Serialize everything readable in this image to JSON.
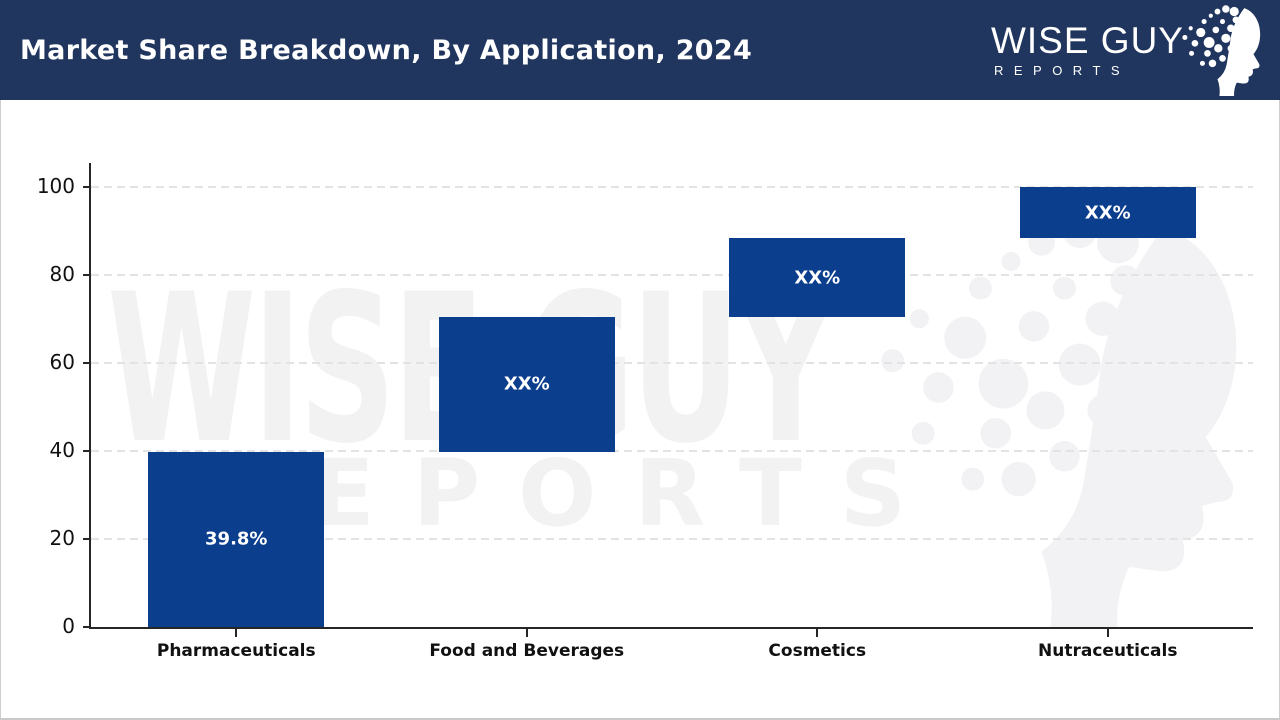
{
  "header": {
    "title": "Market Share Breakdown, By Application, 2024",
    "logo": {
      "line1": "WISE GUY",
      "line2": "REPORTS"
    }
  },
  "watermark": {
    "line1": "WISE GUY",
    "line2": "REPORTS"
  },
  "chart_data": {
    "type": "bar",
    "subtype": "waterfall",
    "title": "Market Share Breakdown, By Application, 2024",
    "xlabel": "",
    "ylabel": "",
    "categories": [
      "Pharmaceuticals",
      "Food and Beverages",
      "Cosmetics",
      "Nutraceuticals"
    ],
    "segments": [
      {
        "category": "Pharmaceuticals",
        "start": 0,
        "end": 39.8,
        "label": "39.8%"
      },
      {
        "category": "Food and Beverages",
        "start": 39.8,
        "end": 70.5,
        "label": "XX%"
      },
      {
        "category": "Cosmetics",
        "start": 70.5,
        "end": 88.3,
        "label": "XX%"
      },
      {
        "category": "Nutraceuticals",
        "start": 88.3,
        "end": 100,
        "label": "XX%"
      }
    ],
    "y_ticks": [
      0,
      20,
      40,
      60,
      80,
      100
    ],
    "ylim": [
      0,
      105
    ],
    "grid": "horizontal-dashed",
    "legend": "none",
    "bar_color": "#0c3e8e",
    "bar_label_color": "#ffffff",
    "axis_color": "#262626",
    "header_bg": "#21365f",
    "watermark_color": "#f2f2f3"
  }
}
